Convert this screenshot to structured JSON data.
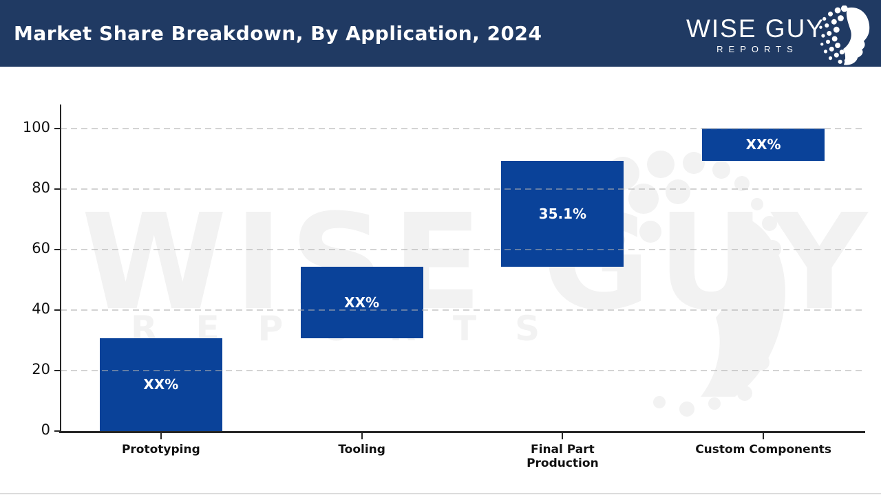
{
  "header": {
    "title": "Market Share Breakdown, By Application, 2024",
    "logo": {
      "line1": "WISE GUY",
      "line2": "REPORTS"
    }
  },
  "watermark": {
    "line1": "WISE GUY",
    "line2": "REPORTS"
  },
  "colors": {
    "header_bg": "#203a63",
    "bar": "#0a4299",
    "bar_label": "#ffffff",
    "axis": "#262626",
    "gridline": "#d9d9d9",
    "watermark": "#f2f2f2"
  },
  "chart_data": {
    "type": "bar",
    "subtype": "stacked-percentage-waterfall",
    "title": "Market Share Breakdown, By Application, 2024",
    "xlabel": "",
    "ylabel": "",
    "ylim": [
      0,
      100
    ],
    "yticks": [
      0,
      20,
      40,
      60,
      80,
      100
    ],
    "grid": "dashed-horizontal",
    "legend": null,
    "categories": [
      "Prototyping",
      "Tooling",
      "Final Part\nProduction",
      "Custom Components"
    ],
    "segments": [
      {
        "category": "Prototyping",
        "start": 0,
        "end": 30.7,
        "label": "XX%"
      },
      {
        "category": "Tooling",
        "start": 30.7,
        "end": 54.3,
        "label": "XX%"
      },
      {
        "category": "Final Part Production",
        "start": 54.3,
        "end": 89.4,
        "label": "35.1%",
        "value": 35.1
      },
      {
        "category": "Custom Components",
        "start": 89.4,
        "end": 100,
        "label": "XX%"
      }
    ]
  }
}
